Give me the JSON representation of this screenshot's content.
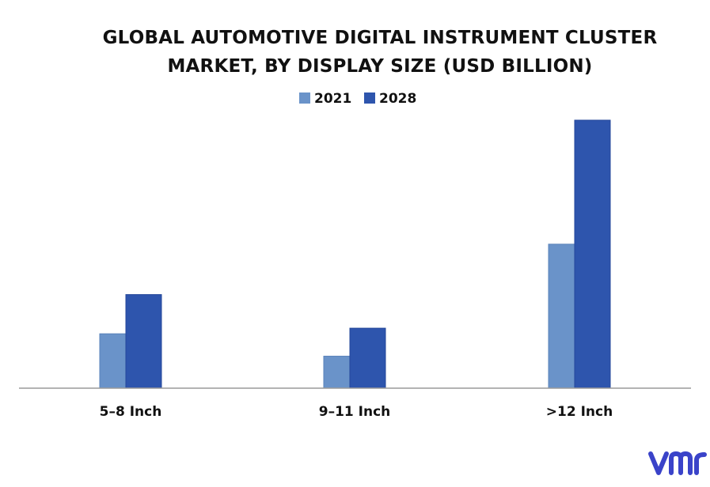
{
  "chart_data": {
    "type": "bar",
    "title": "GLOBAL AUTOMOTIVE DIGITAL INSTRUMENT CLUSTER MARKET, BY DISPLAY SIZE (USD BILLION)",
    "xlabel": "",
    "ylabel": "",
    "categories": [
      "5–8 Inch",
      "9–11 Inch",
      ">12 Inch"
    ],
    "series": [
      {
        "name": "2021",
        "values": [
          0.68,
          0.4,
          1.8
        ],
        "color": "#6a93c9"
      },
      {
        "name": "2028",
        "values": [
          1.17,
          0.75,
          3.35
        ],
        "color": "#2e55ad"
      }
    ],
    "ylim": [
      0,
      3.6
    ],
    "grid": false,
    "legend_position": "top"
  },
  "logo": {
    "text": "vmr",
    "color": "#3a43c9",
    "icon": "vmr-logo"
  }
}
